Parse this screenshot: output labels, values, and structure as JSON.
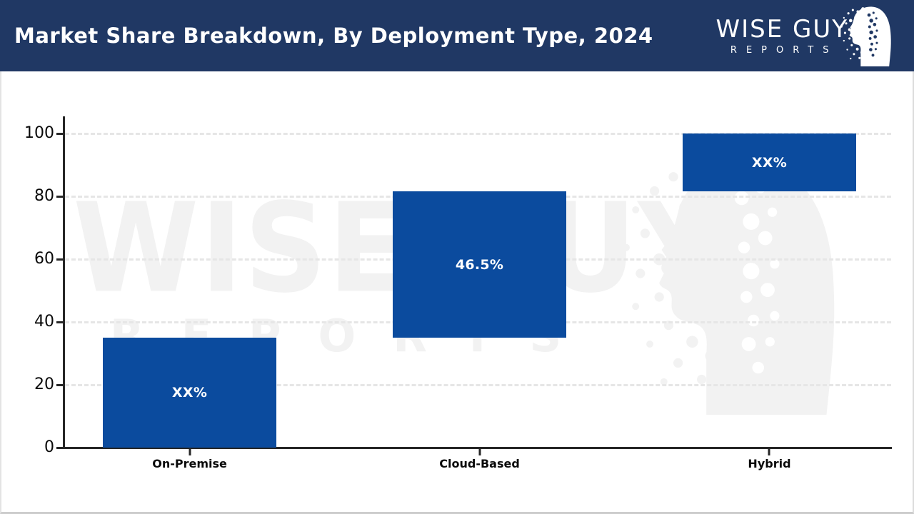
{
  "header": {
    "title": "Market Share Breakdown, By Deployment Type, 2024",
    "logo": {
      "line1": "WISE GUY",
      "line2": "REPORTS"
    }
  },
  "watermark": {
    "line1": "WISE GUY",
    "line2": "REPORTS"
  },
  "colors": {
    "header_bg": "#203864",
    "title_text": "#ffffff",
    "bar": "#0b4b9e",
    "bar_label": "#ffffff",
    "grid": "#e6e6e6",
    "axis": "#262626",
    "watermark": "#f2f2f2"
  },
  "chart_data": {
    "type": "bar",
    "subtype": "waterfall-floating-bars",
    "title": "Market Share Breakdown, By Deployment Type, 2024",
    "categories": [
      "On-Premise",
      "Cloud-Based",
      "Hybrid"
    ],
    "segments": [
      {
        "category": "On-Premise",
        "start": 0,
        "end": 35,
        "label": "XX%"
      },
      {
        "category": "Cloud-Based",
        "start": 35,
        "end": 81.5,
        "label": "46.5%"
      },
      {
        "category": "Hybrid",
        "start": 81.5,
        "end": 100,
        "label": "XX%"
      }
    ],
    "labels_shown": [
      "XX%",
      "46.5%",
      "XX%"
    ],
    "xlabel": "",
    "ylabel": "",
    "ylim": [
      0,
      100
    ],
    "yticks": [
      0,
      20,
      40,
      60,
      80,
      100
    ],
    "xlim": [
      -0.43,
      2.42
    ],
    "bar_width": 0.6,
    "grid": "horizontal-dashed",
    "legend": "none"
  }
}
